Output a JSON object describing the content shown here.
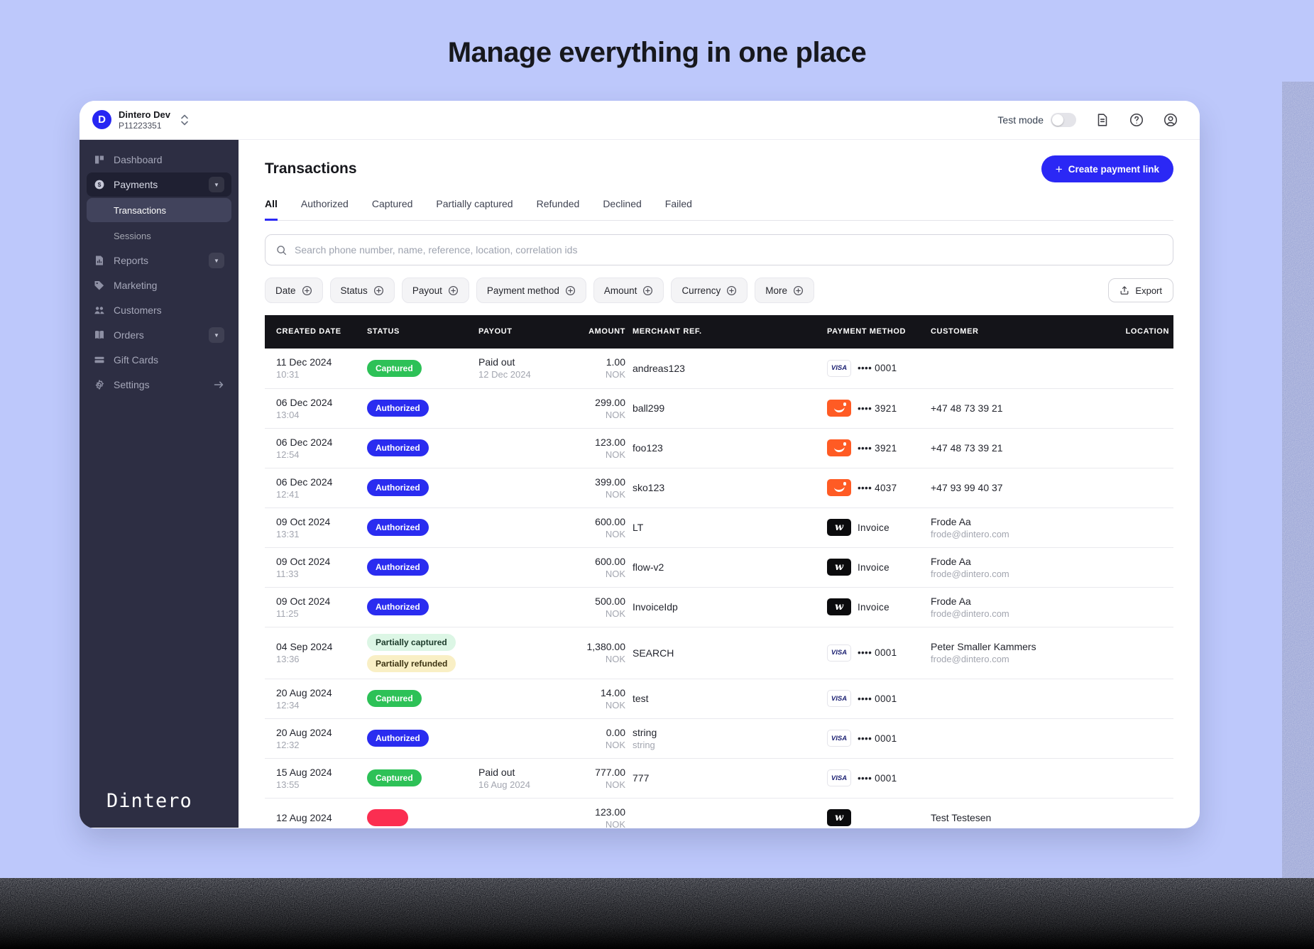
{
  "page": {
    "title": "Manage everything in one place"
  },
  "topbar": {
    "org_name": "Dintero Dev",
    "org_id": "P11223351",
    "org_logo_letter": "D",
    "test_mode_label": "Test mode",
    "test_mode_on": false
  },
  "sidebar": {
    "wordmark": "Dintero",
    "items": [
      {
        "label": "Dashboard",
        "icon": "dashboard"
      },
      {
        "label": "Payments",
        "icon": "payments",
        "dropdown": true,
        "highlight": "parent"
      },
      {
        "label": "Transactions",
        "sub": true,
        "selected": true
      },
      {
        "label": "Sessions",
        "sub": true
      },
      {
        "label": "Reports",
        "icon": "reports",
        "dropdown": true
      },
      {
        "label": "Marketing",
        "icon": "marketing"
      },
      {
        "label": "Customers",
        "icon": "customers"
      },
      {
        "label": "Orders",
        "icon": "orders",
        "dropdown": true
      },
      {
        "label": "Gift Cards",
        "icon": "giftcards"
      },
      {
        "label": "Settings",
        "icon": "settings",
        "arrow": true
      }
    ]
  },
  "main": {
    "title": "Transactions",
    "create_button_label": "Create payment link",
    "tabs": [
      "All",
      "Authorized",
      "Captured",
      "Partially captured",
      "Refunded",
      "Declined",
      "Failed"
    ],
    "active_tab": "All",
    "search_placeholder": "Search phone number, name, reference, location, correlation ids",
    "filters": [
      "Date",
      "Status",
      "Payout",
      "Payment method",
      "Amount",
      "Currency",
      "More"
    ],
    "export_label": "Export",
    "table": {
      "columns": [
        "Created date",
        "Status",
        "Payout",
        "Amount",
        "Merchant ref.",
        "Payment method",
        "Customer",
        "Location"
      ],
      "rows": [
        {
          "date": "11 Dec 2024",
          "time": "10:31",
          "badges": [
            {
              "label": "Captured",
              "style": "captured"
            }
          ],
          "payout": "Paid out",
          "payout_date": "12 Dec 2024",
          "amount": "1.00",
          "currency": "NOK",
          "ref": "andreas123",
          "ref_sub": "",
          "method": {
            "icon": "visa",
            "label": "•••• 0001"
          },
          "customer": "",
          "customer_sub": "",
          "location": ""
        },
        {
          "date": "06 Dec 2024",
          "time": "13:04",
          "badges": [
            {
              "label": "Authorized",
              "style": "authorized"
            }
          ],
          "payout": "",
          "payout_date": "",
          "amount": "299.00",
          "currency": "NOK",
          "ref": "ball299",
          "ref_sub": "",
          "method": {
            "icon": "vipps",
            "label": "•••• 3921"
          },
          "customer": "+47 48 73 39 21",
          "customer_sub": "",
          "location": ""
        },
        {
          "date": "06 Dec 2024",
          "time": "12:54",
          "badges": [
            {
              "label": "Authorized",
              "style": "authorized"
            }
          ],
          "payout": "",
          "payout_date": "",
          "amount": "123.00",
          "currency": "NOK",
          "ref": "foo123",
          "ref_sub": "",
          "method": {
            "icon": "vipps",
            "label": "•••• 3921"
          },
          "customer": "+47 48 73 39 21",
          "customer_sub": "",
          "location": ""
        },
        {
          "date": "06 Dec 2024",
          "time": "12:41",
          "badges": [
            {
              "label": "Authorized",
              "style": "authorized"
            }
          ],
          "payout": "",
          "payout_date": "",
          "amount": "399.00",
          "currency": "NOK",
          "ref": "sko123",
          "ref_sub": "",
          "method": {
            "icon": "vipps",
            "label": "•••• 4037"
          },
          "customer": "+47 93 99 40 37",
          "customer_sub": "",
          "location": ""
        },
        {
          "date": "09 Oct 2024",
          "time": "13:31",
          "badges": [
            {
              "label": "Authorized",
              "style": "authorized"
            }
          ],
          "payout": "",
          "payout_date": "",
          "amount": "600.00",
          "currency": "NOK",
          "ref": "LT",
          "ref_sub": "",
          "method": {
            "icon": "walley",
            "label": "Invoice"
          },
          "customer": "Frode Aa",
          "customer_sub": "frode@dintero.com",
          "location": ""
        },
        {
          "date": "09 Oct 2024",
          "time": "11:33",
          "badges": [
            {
              "label": "Authorized",
              "style": "authorized"
            }
          ],
          "payout": "",
          "payout_date": "",
          "amount": "600.00",
          "currency": "NOK",
          "ref": "flow-v2",
          "ref_sub": "",
          "method": {
            "icon": "walley",
            "label": "Invoice"
          },
          "customer": "Frode Aa",
          "customer_sub": "frode@dintero.com",
          "location": ""
        },
        {
          "date": "09 Oct 2024",
          "time": "11:25",
          "badges": [
            {
              "label": "Authorized",
              "style": "authorized"
            }
          ],
          "payout": "",
          "payout_date": "",
          "amount": "500.00",
          "currency": "NOK",
          "ref": "InvoiceIdp",
          "ref_sub": "",
          "method": {
            "icon": "walley",
            "label": "Invoice"
          },
          "customer": "Frode Aa",
          "customer_sub": "frode@dintero.com",
          "location": ""
        },
        {
          "date": "04 Sep 2024",
          "time": "13:36",
          "badges": [
            {
              "label": "Partially captured",
              "style": "partially_captured"
            },
            {
              "label": "Partially refunded",
              "style": "partially_refunded"
            }
          ],
          "payout": "",
          "payout_date": "",
          "amount": "1,380.00",
          "currency": "NOK",
          "ref": "SEARCH",
          "ref_sub": "",
          "method": {
            "icon": "visa",
            "label": "•••• 0001"
          },
          "customer": "Peter Smaller Kammers",
          "customer_sub": "frode@dintero.com",
          "location": ""
        },
        {
          "date": "20 Aug 2024",
          "time": "12:34",
          "badges": [
            {
              "label": "Captured",
              "style": "captured"
            }
          ],
          "payout": "",
          "payout_date": "",
          "amount": "14.00",
          "currency": "NOK",
          "ref": "test",
          "ref_sub": "",
          "method": {
            "icon": "visa",
            "label": "•••• 0001"
          },
          "customer": "",
          "customer_sub": "",
          "location": ""
        },
        {
          "date": "20 Aug 2024",
          "time": "12:32",
          "badges": [
            {
              "label": "Authorized",
              "style": "authorized"
            }
          ],
          "payout": "",
          "payout_date": "",
          "amount": "0.00",
          "currency": "NOK",
          "ref": "string",
          "ref_sub": "string",
          "method": {
            "icon": "visa",
            "label": "•••• 0001"
          },
          "customer": "",
          "customer_sub": "",
          "location": ""
        },
        {
          "date": "15 Aug 2024",
          "time": "13:55",
          "badges": [
            {
              "label": "Captured",
              "style": "captured"
            }
          ],
          "payout": "Paid out",
          "payout_date": "16 Aug 2024",
          "amount": "777.00",
          "currency": "NOK",
          "ref": "777",
          "ref_sub": "",
          "method": {
            "icon": "visa",
            "label": "•••• 0001"
          },
          "customer": "",
          "customer_sub": "",
          "location": ""
        },
        {
          "date": "12 Aug 2024",
          "time": "",
          "badges": [
            {
              "label": "",
              "style": "declined"
            }
          ],
          "payout": "",
          "payout_date": "",
          "amount": "123.00",
          "currency": "NOK",
          "ref": "",
          "ref_sub": "",
          "method": {
            "icon": "walley",
            "label": ""
          },
          "customer": "Test Testesen",
          "customer_sub": "",
          "location": ""
        }
      ]
    }
  },
  "colors": {
    "page_bg": "#bdc8fb",
    "accent_blue": "#2b28f5",
    "authorized_blue": "#2a2cf0",
    "captured_green": "#2dc157",
    "declined_red": "#fb2e51",
    "vipps_orange": "#ff5b24",
    "visa_blue": "#1a1f71",
    "sidebar_bg": "#2d2e43",
    "table_header_bg": "#141419"
  }
}
